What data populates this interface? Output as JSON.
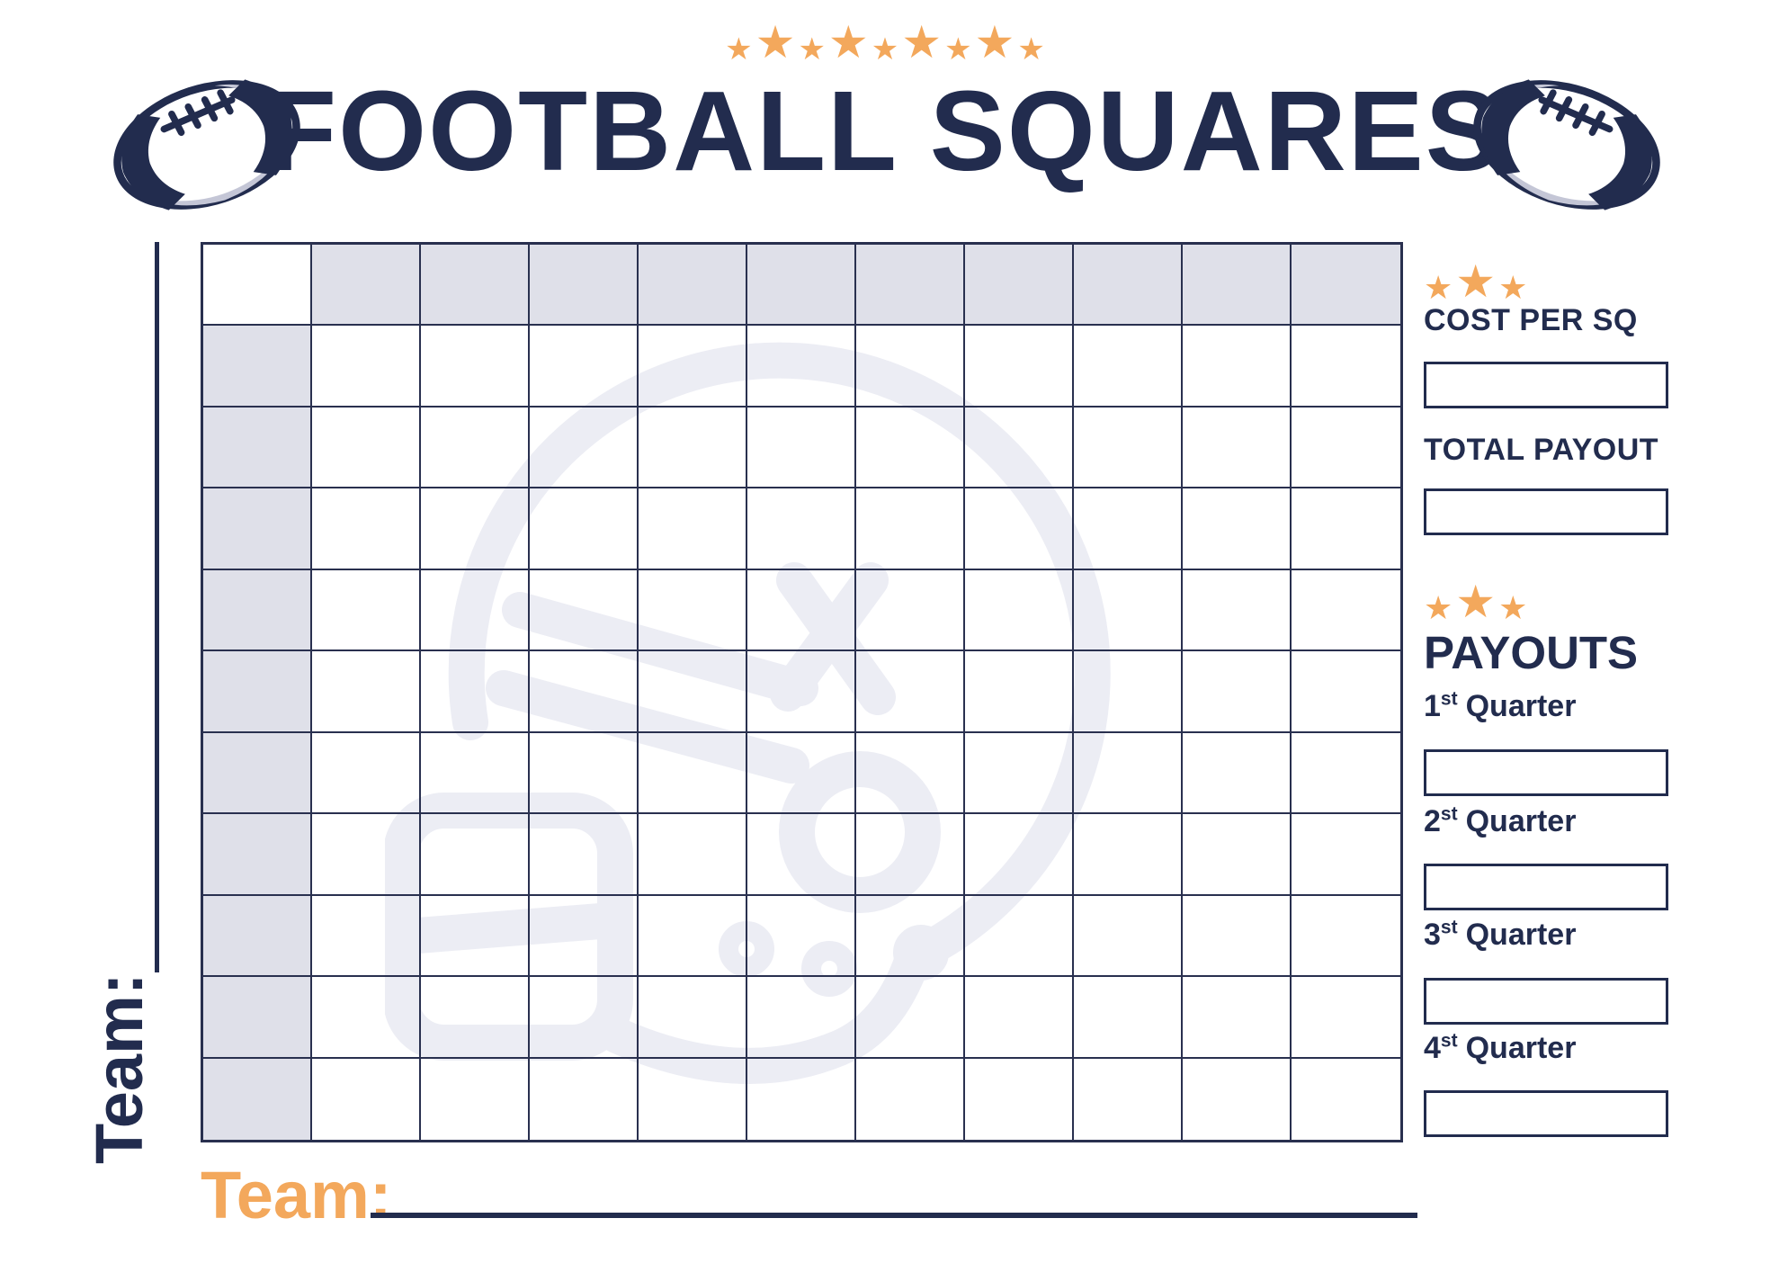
{
  "title": "FOOTBALL SQUARES",
  "team_left_label": "Team:",
  "team_bottom_label": "Team:",
  "decor": {
    "star_glyph": "★",
    "top_star_count": 9,
    "side_star_count": 3,
    "star_color": "#F3A85C",
    "navy": "#222C4E",
    "shaded_cell_color": "#DFE0E9",
    "watermark_color": "#ECEDF4",
    "icons": [
      "football-icon-left",
      "football-icon-right",
      "football-helmet-watermark"
    ]
  },
  "grid": {
    "rows": 11,
    "cols": 11,
    "header_row_shaded": true,
    "header_col_shaded": true,
    "corner_cell_blank": true
  },
  "sidebar": {
    "cost_per_sq_label": "COST PER SQ",
    "cost_per_sq_value": "",
    "total_payout_label": "TOTAL PAYOUT",
    "total_payout_value": "",
    "payouts_label": "PAYOUTS",
    "quarters": [
      {
        "num": "1",
        "sup": "st",
        "word": "Quarter",
        "value": ""
      },
      {
        "num": "2",
        "sup": "st",
        "word": "Quarter",
        "value": ""
      },
      {
        "num": "3",
        "sup": "st",
        "word": "Quarter",
        "value": ""
      },
      {
        "num": "4",
        "sup": "st",
        "word": "Quarter",
        "value": ""
      }
    ]
  }
}
